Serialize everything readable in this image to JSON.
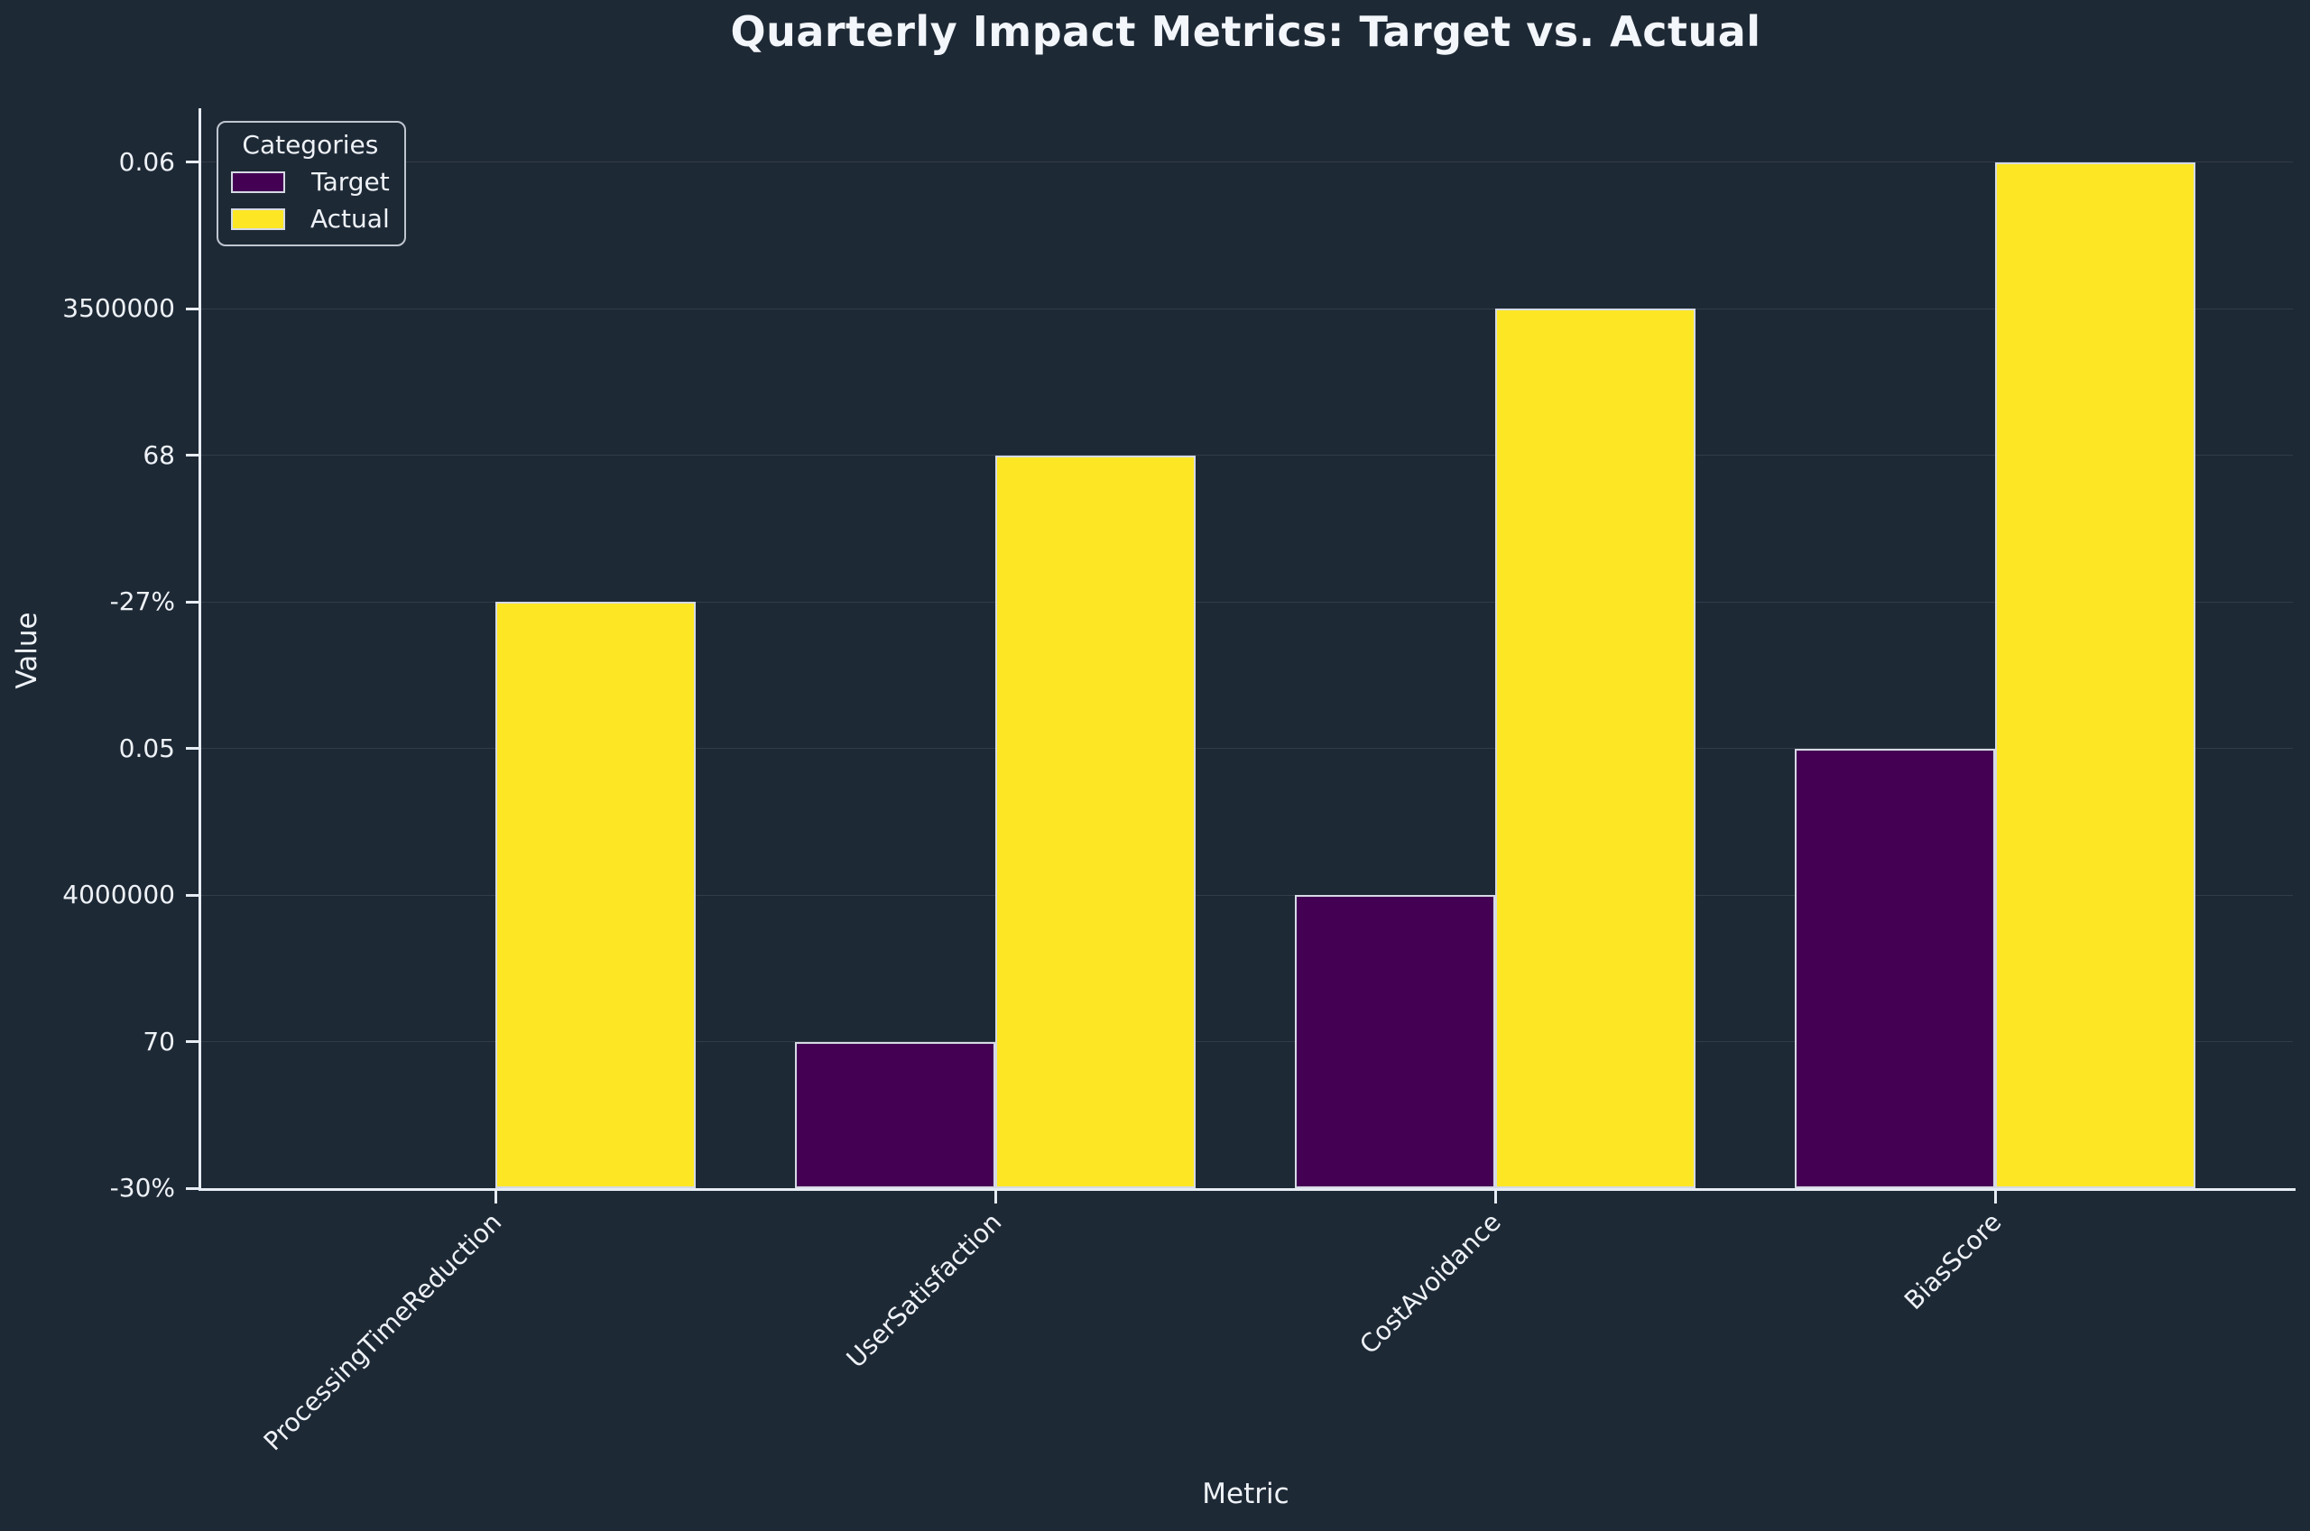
{
  "title": "Quarterly Impact Metrics: Target vs. Actual",
  "chart_data": {
    "type": "bar",
    "title": "Quarterly Impact Metrics: Target vs. Actual",
    "xlabel": "Metric",
    "ylabel": "Value",
    "legend_title": "Categories",
    "legend_position": "upper-left",
    "grid": "horizontal-faint",
    "y_axis_type": "ordinal",
    "y_ticks_bottom_to_top": [
      "-30%",
      "70",
      "4000000",
      "0.05",
      "-27%",
      "68",
      "3500000",
      "0.06"
    ],
    "categories": [
      "ProcessingTimeReduction",
      "UserSatisfaction",
      "CostAvoidance",
      "BiasScore"
    ],
    "series": [
      {
        "name": "Target",
        "color": "#440154",
        "values": [
          "-30%",
          "70",
          "4000000",
          "0.05"
        ],
        "tick_rank": [
          0,
          1,
          2,
          3
        ]
      },
      {
        "name": "Actual",
        "color": "#fde725",
        "values": [
          "-27%",
          "68",
          "3500000",
          "0.06"
        ],
        "tick_rank": [
          4,
          5,
          6,
          7
        ]
      }
    ],
    "colors": {
      "background": "#1e2936",
      "text": "#eef2f7",
      "axis": "#e7edf4",
      "grid": "rgba(255,255,255,0.09)",
      "bar_edge": "#d6dae4",
      "target": "#440154",
      "actual": "#fde725"
    }
  }
}
